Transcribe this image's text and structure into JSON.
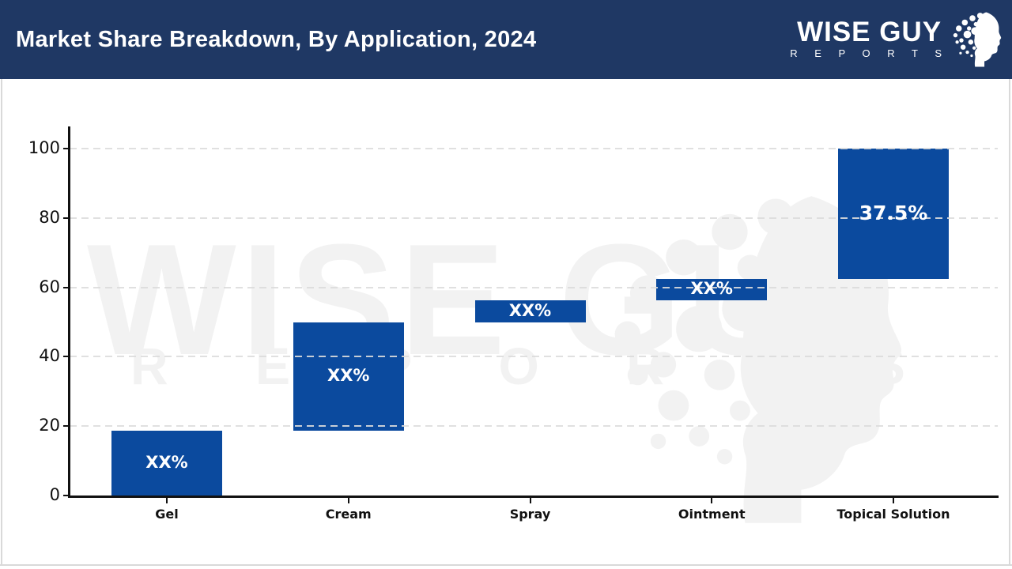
{
  "header": {
    "title": "Market Share Breakdown, By Application, 2024",
    "logo": {
      "name": "WISE GUY",
      "subtitle": "R E P O R T S"
    }
  },
  "watermark": {
    "name": "WISE GUY",
    "subtitle": "R E P O R T S"
  },
  "chart_data": {
    "type": "bar",
    "subtype": "waterfall",
    "title": "Market Share Breakdown, By Application, 2024",
    "categories": [
      "Gel",
      "Cream",
      "Spray",
      "Ointment",
      "Topical Solution"
    ],
    "segments": [
      {
        "category": "Gel",
        "start": 0,
        "end": 18.75,
        "label": "XX%"
      },
      {
        "category": "Cream",
        "start": 18.75,
        "end": 50,
        "label": "XX%"
      },
      {
        "category": "Spray",
        "start": 50,
        "end": 56.25,
        "label": "XX%"
      },
      {
        "category": "Ointment",
        "start": 56.25,
        "end": 62.5,
        "label": "XX%"
      },
      {
        "category": "Topical Solution",
        "start": 62.5,
        "end": 100,
        "label": "37.5%"
      }
    ],
    "y_ticks": [
      0,
      20,
      40,
      60,
      80,
      100
    ],
    "ylim": [
      0,
      106
    ],
    "xlabel": "",
    "ylabel": "",
    "grid": "horizontal-dashed",
    "legend": "none",
    "colors": {
      "bar": "#0B4A9E",
      "header_bg": "#1F3864",
      "grid_line": "#DCDCDC",
      "axis": "#111111",
      "watermark": "#F2F2F2",
      "title_text": "#FFFFFF"
    }
  }
}
